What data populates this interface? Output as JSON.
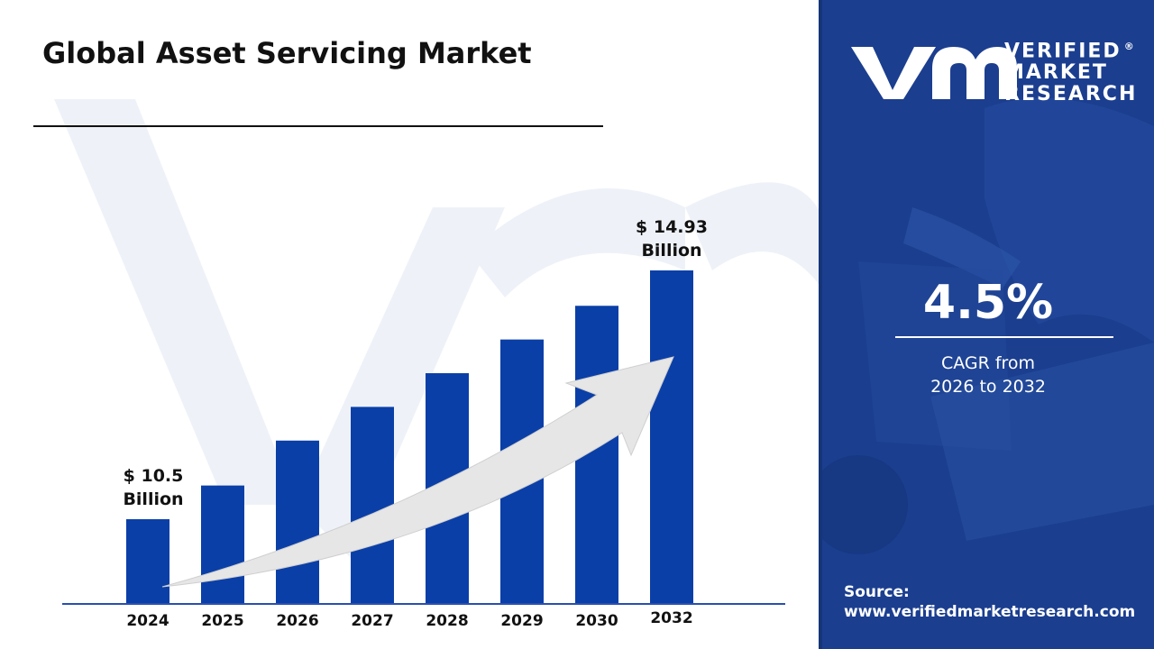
{
  "title": "Global Asset Servicing Market",
  "logo": {
    "line1": "VERIFIED",
    "line2": "MARKET",
    "line3": "RESEARCH",
    "mark": "®"
  },
  "cagr": {
    "value": "4.5%",
    "label_line1": "CAGR from",
    "label_line2": "2026 to 2032"
  },
  "source": {
    "label": "Source:",
    "url": "www.verifiedmarketresearch.com"
  },
  "colors": {
    "bar": "#0b3fa8",
    "panel": "#1b3e8f",
    "axis": "#2a4fb0",
    "arrow": "#e6e6e6"
  },
  "chart_data": {
    "type": "bar",
    "categories": [
      "2024",
      "2025",
      "2026",
      "2027",
      "2028",
      "2029",
      "2030",
      "2032"
    ],
    "values": [
      10.5,
      11.1,
      11.9,
      12.5,
      13.1,
      13.7,
      14.3,
      14.93
    ],
    "annotations": [
      {
        "category": "2024",
        "line1": "$ 10.5",
        "line2": "Billion"
      },
      {
        "category": "2032",
        "line1": "$ 14.93",
        "line2": "Billion"
      }
    ],
    "trend_arrow": true,
    "grid": false
  }
}
